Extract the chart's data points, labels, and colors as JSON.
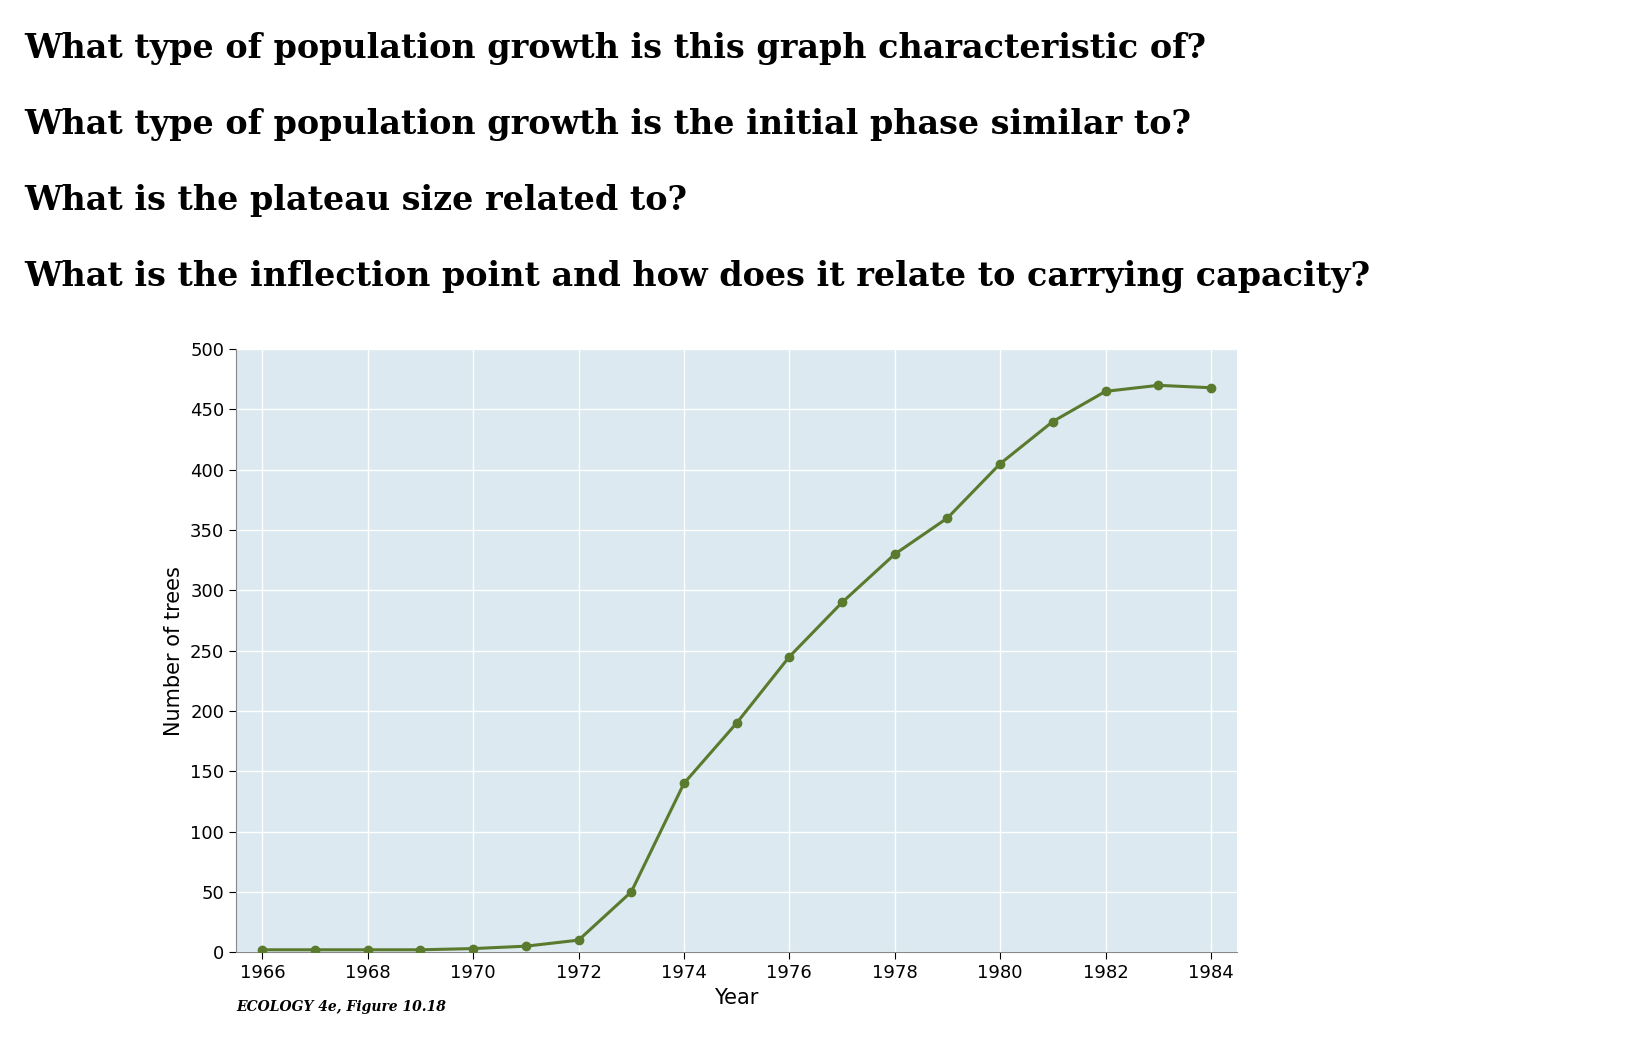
{
  "title_lines": [
    "What type of population growth is this graph characteristic of?",
    "What type of population growth is the initial phase similar to?",
    "What is the plateau size related to?",
    "What is the inflection point and how does it relate to carrying capacity?"
  ],
  "years": [
    1966,
    1967,
    1968,
    1969,
    1970,
    1971,
    1972,
    1973,
    1974,
    1975,
    1976,
    1977,
    1978,
    1979,
    1980,
    1981,
    1982,
    1983,
    1984
  ],
  "trees": [
    2,
    2,
    2,
    2,
    3,
    5,
    10,
    50,
    140,
    190,
    245,
    290,
    330,
    360,
    405,
    440,
    465,
    470,
    468
  ],
  "xlabel": "Year",
  "ylabel": "Number of trees",
  "ylim": [
    0,
    500
  ],
  "xlim": [
    1965.5,
    1984.5
  ],
  "xticks": [
    1966,
    1968,
    1970,
    1972,
    1974,
    1976,
    1978,
    1980,
    1982,
    1984
  ],
  "yticks": [
    0,
    50,
    100,
    150,
    200,
    250,
    300,
    350,
    400,
    450,
    500
  ],
  "line_color": "#5a7a2e",
  "marker_color": "#5a7a2e",
  "bg_color": "#dce9f0",
  "caption": "ECOLOGY 4e, Figure 10.18",
  "title_fontsize": 24,
  "axis_label_fontsize": 15,
  "tick_fontsize": 13,
  "caption_fontsize": 10
}
